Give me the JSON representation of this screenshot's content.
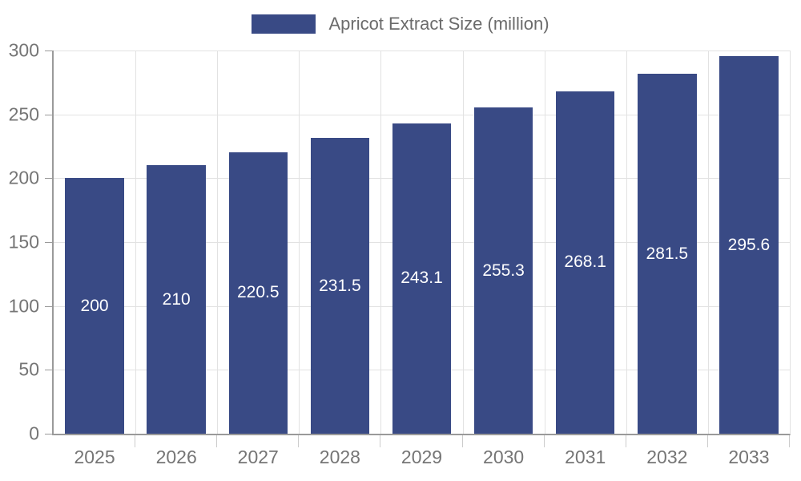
{
  "chart_data": {
    "type": "bar",
    "title": "Apricot Extract Size (million)",
    "categories": [
      "2025",
      "2026",
      "2027",
      "2028",
      "2029",
      "2030",
      "2031",
      "2032",
      "2033"
    ],
    "values": [
      200,
      210,
      220.5,
      231.5,
      243.1,
      255.3,
      268.1,
      281.5,
      295.6
    ],
    "value_labels": [
      "200",
      "210",
      "220.5",
      "231.5",
      "243.1",
      "255.3",
      "268.1",
      "281.5",
      "295.6"
    ],
    "xlabel": "",
    "ylabel": "",
    "ylim": [
      0,
      300
    ],
    "yticks": [
      0,
      50,
      100,
      150,
      200,
      250,
      300
    ],
    "grid": true,
    "legend_position": "top-center",
    "colors": {
      "bar": "#394A85",
      "value_label": "#ffffff",
      "grid": "#e2e2e2",
      "axis_line": "#9a9a9a",
      "tick_label": "#757575",
      "legend_text": "#6b6b6b",
      "background": "#ffffff"
    }
  }
}
